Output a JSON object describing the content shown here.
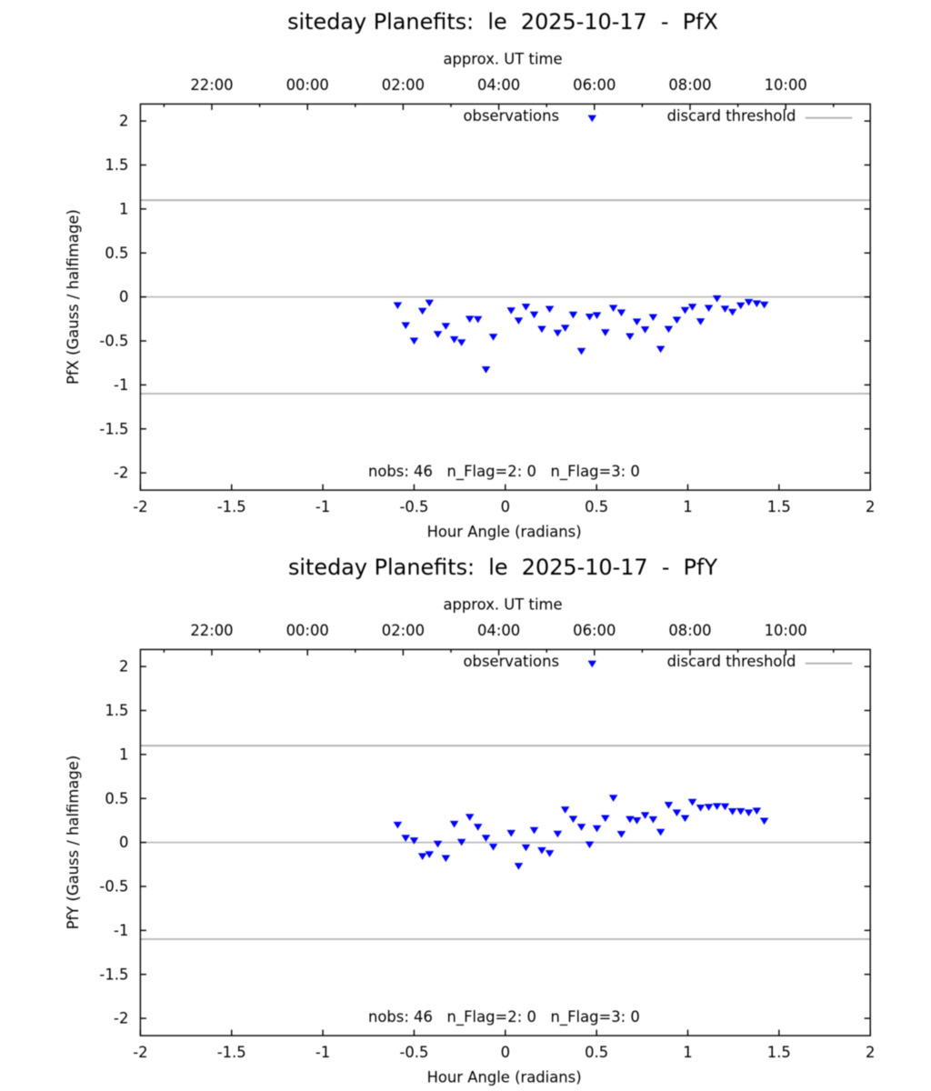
{
  "colors": {
    "background": "#ffffff",
    "marker": "#0000ff",
    "threshold_line": "#b0b0b0",
    "zero_line": "#b0b0b0",
    "axis": "#000000",
    "text": "#000000"
  },
  "chart_data": [
    {
      "type": "scatter",
      "title": "siteday Planefits:  le  2025-10-17  -  PfX",
      "x2label": "approx. UT time",
      "xlabel": "Hour Angle (radians)",
      "ylabel": "PfX (Gauss / halfimage)",
      "annotation": "nobs: 46   n_Flag=2: 0   n_Flag=3: 0",
      "legend": [
        {
          "label": "observations",
          "sample": "triangle-down-marker",
          "color": "#0000ff"
        },
        {
          "label": "discard threshold",
          "sample": "line",
          "color": "#b0b0b0"
        }
      ],
      "xlim": [
        -2,
        2
      ],
      "ylim": [
        -2.2,
        2.2
      ],
      "xticks": [
        "-2",
        "-1.5",
        "-1",
        "-0.5",
        "0",
        "0.5",
        "1",
        "1.5",
        "2"
      ],
      "yticks": [
        "2",
        "1.5",
        "1",
        "0.5",
        "0",
        "-0.5",
        "-1",
        "-1.5",
        "-2"
      ],
      "x2ticks": [
        "22:00",
        "00:00",
        "02:00",
        "04:00",
        "06:00",
        "08:00",
        "10:00"
      ],
      "grid": false,
      "legend_position": "top-inside",
      "zero_line_y": 0,
      "discard_threshold_y": [
        1.1,
        -1.1
      ],
      "x": [
        -0.59,
        -0.546,
        -0.5,
        -0.454,
        -0.416,
        -0.37,
        -0.326,
        -0.28,
        -0.24,
        -0.195,
        -0.15,
        -0.106,
        -0.066,
        0.032,
        0.073,
        0.113,
        0.158,
        0.2,
        0.243,
        0.287,
        0.328,
        0.372,
        0.417,
        0.462,
        0.502,
        0.548,
        0.592,
        0.636,
        0.683,
        0.721,
        0.766,
        0.81,
        0.851,
        0.895,
        0.94,
        0.985,
        1.025,
        1.07,
        1.115,
        1.16,
        1.204,
        1.245,
        1.29,
        1.334,
        1.378,
        1.419
      ],
      "y": [
        -0.099,
        -0.327,
        -0.502,
        -0.163,
        -0.071,
        -0.427,
        -0.335,
        -0.487,
        -0.521,
        -0.254,
        -0.258,
        -0.829,
        -0.458,
        -0.158,
        -0.274,
        -0.116,
        -0.205,
        -0.369,
        -0.141,
        -0.413,
        -0.356,
        -0.206,
        -0.62,
        -0.229,
        -0.213,
        -0.407,
        -0.13,
        -0.182,
        -0.452,
        -0.285,
        -0.374,
        -0.234,
        -0.596,
        -0.369,
        -0.264,
        -0.155,
        -0.117,
        -0.283,
        -0.13,
        -0.022,
        -0.139,
        -0.175,
        -0.102,
        -0.063,
        -0.078,
        -0.093
      ]
    },
    {
      "type": "scatter",
      "title": "siteday Planefits:  le  2025-10-17  -  PfY",
      "x2label": "approx. UT time",
      "xlabel": "Hour Angle (radians)",
      "ylabel": "PfY (Gauss / halfimage)",
      "annotation": "nobs: 46   n_Flag=2: 0   n_Flag=3: 0",
      "legend": [
        {
          "label": "observations",
          "sample": "triangle-down-marker",
          "color": "#0000ff"
        },
        {
          "label": "discard threshold",
          "sample": "line",
          "color": "#b0b0b0"
        }
      ],
      "xlim": [
        -2,
        2
      ],
      "ylim": [
        -2.2,
        2.2
      ],
      "xticks": [
        "-2",
        "-1.5",
        "-1",
        "-0.5",
        "0",
        "0.5",
        "1",
        "1.5",
        "2"
      ],
      "yticks": [
        "2",
        "1.5",
        "1",
        "0.5",
        "0",
        "-0.5",
        "-1",
        "-1.5",
        "-2"
      ],
      "x2ticks": [
        "22:00",
        "00:00",
        "02:00",
        "04:00",
        "06:00",
        "08:00",
        "10:00"
      ],
      "grid": false,
      "legend_position": "top-inside",
      "zero_line_y": 0,
      "discard_threshold_y": [
        1.1,
        -1.1
      ],
      "x": [
        -0.59,
        -0.546,
        -0.5,
        -0.454,
        -0.416,
        -0.37,
        -0.326,
        -0.28,
        -0.24,
        -0.195,
        -0.15,
        -0.106,
        -0.066,
        0.032,
        0.073,
        0.113,
        0.158,
        0.2,
        0.243,
        0.287,
        0.328,
        0.372,
        0.417,
        0.462,
        0.502,
        0.548,
        0.592,
        0.636,
        0.683,
        0.721,
        0.766,
        0.81,
        0.851,
        0.895,
        0.94,
        0.985,
        1.025,
        1.07,
        1.115,
        1.16,
        1.204,
        1.245,
        1.29,
        1.334,
        1.378,
        1.419
      ],
      "y": [
        0.196,
        0.047,
        0.017,
        -0.161,
        -0.139,
        -0.02,
        -0.183,
        0.206,
        0.0,
        0.285,
        0.172,
        0.047,
        -0.054,
        0.102,
        -0.272,
        -0.061,
        0.135,
        -0.094,
        -0.128,
        0.094,
        0.369,
        0.263,
        0.172,
        -0.028,
        0.155,
        0.272,
        0.502,
        0.091,
        0.26,
        0.246,
        0.305,
        0.257,
        0.114,
        0.422,
        0.335,
        0.272,
        0.455,
        0.391,
        0.398,
        0.407,
        0.405,
        0.349,
        0.351,
        0.335,
        0.356,
        0.241
      ]
    }
  ]
}
